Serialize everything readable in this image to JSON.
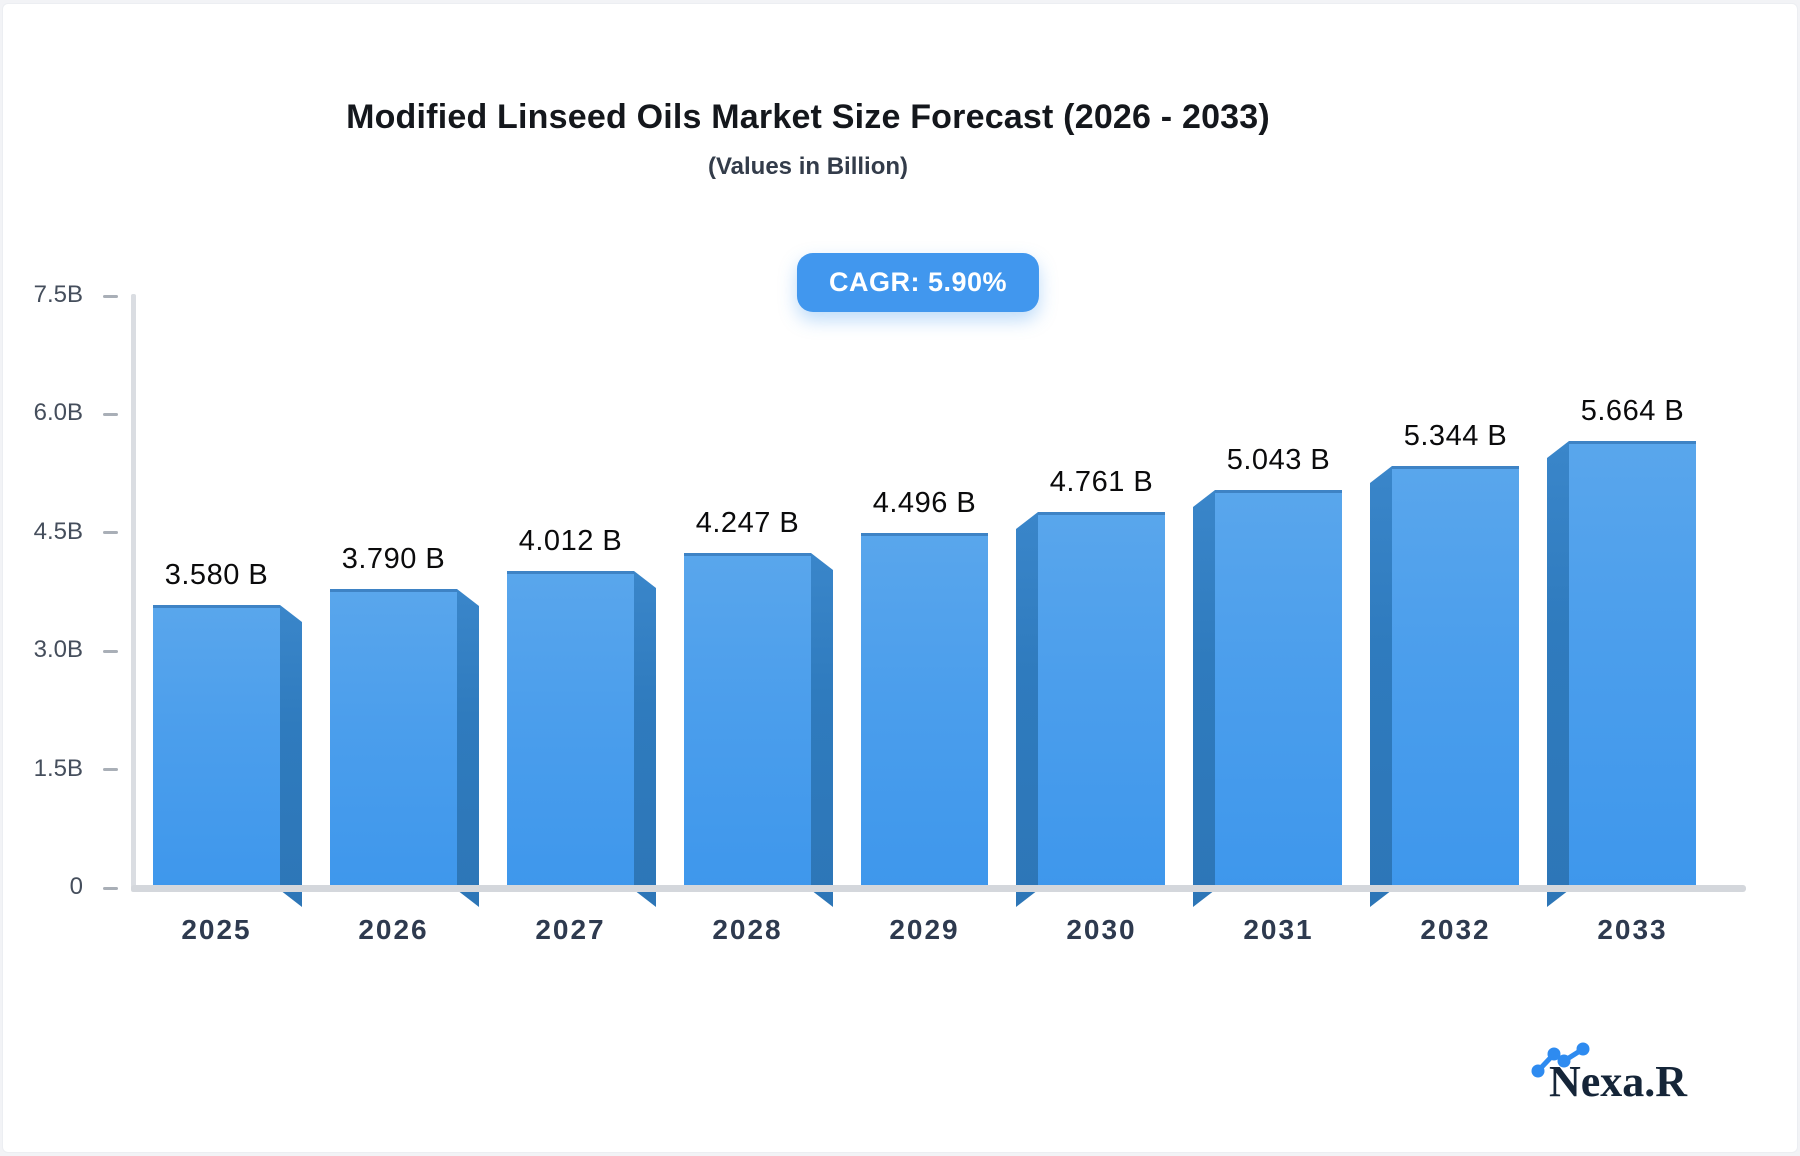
{
  "title": "Modified Linseed Oils Market Size Forecast (2026 - 2033)",
  "subtitle": "(Values in Billion)",
  "badge": {
    "label": "CAGR: 5.90%",
    "bg": "#4197EE",
    "text_color": "#FFFFFF"
  },
  "chart_data": {
    "type": "bar",
    "title": "Modified Linseed Oils Market Size Forecast (2026 - 2033)",
    "subtitle": "(Values in Billion)",
    "cagr": "5.90%",
    "categories": [
      "2025",
      "2026",
      "2027",
      "2028",
      "2029",
      "2030",
      "2031",
      "2032",
      "2033"
    ],
    "values": [
      3.58,
      3.79,
      4.012,
      4.247,
      4.496,
      4.761,
      5.043,
      5.344,
      5.664
    ],
    "value_labels": [
      "3.580 B",
      "3.790 B",
      "4.012 B",
      "4.247 B",
      "4.496 B",
      "4.761 B",
      "5.043 B",
      "5.344 B",
      "5.664 B"
    ],
    "xlabel": "",
    "ylabel": "",
    "ylim": [
      0,
      7.5
    ],
    "y_ticks": [
      {
        "label": "7.5B",
        "value": 7.5
      },
      {
        "label": "6.0B",
        "value": 6.0
      },
      {
        "label": "4.5B",
        "value": 4.5
      },
      {
        "label": "3.0B",
        "value": 3.0
      },
      {
        "label": "1.5B",
        "value": 1.5
      },
      {
        "label": "0",
        "value": 0
      }
    ],
    "grid": false,
    "legend": false,
    "style": "3d-perspective-bars",
    "colors": {
      "bar_face_top": "#59A6EC",
      "bar_face_bottom": "#3E97EC",
      "bar_top_edge": "#3E83C5",
      "bar_side": "#2F7BBE",
      "axis_line": "#DADDE2",
      "baseline": "#D4D7DC",
      "tick_text": "#454E5C",
      "year_text": "#2E3A4F",
      "value_text": "#0B0B0C",
      "badge_bg": "#4197EE"
    }
  },
  "logo": {
    "text": "Nexa.R",
    "icon": "line-chart-icon",
    "text_color": "#152538",
    "icon_color": "#2E8BF0"
  }
}
